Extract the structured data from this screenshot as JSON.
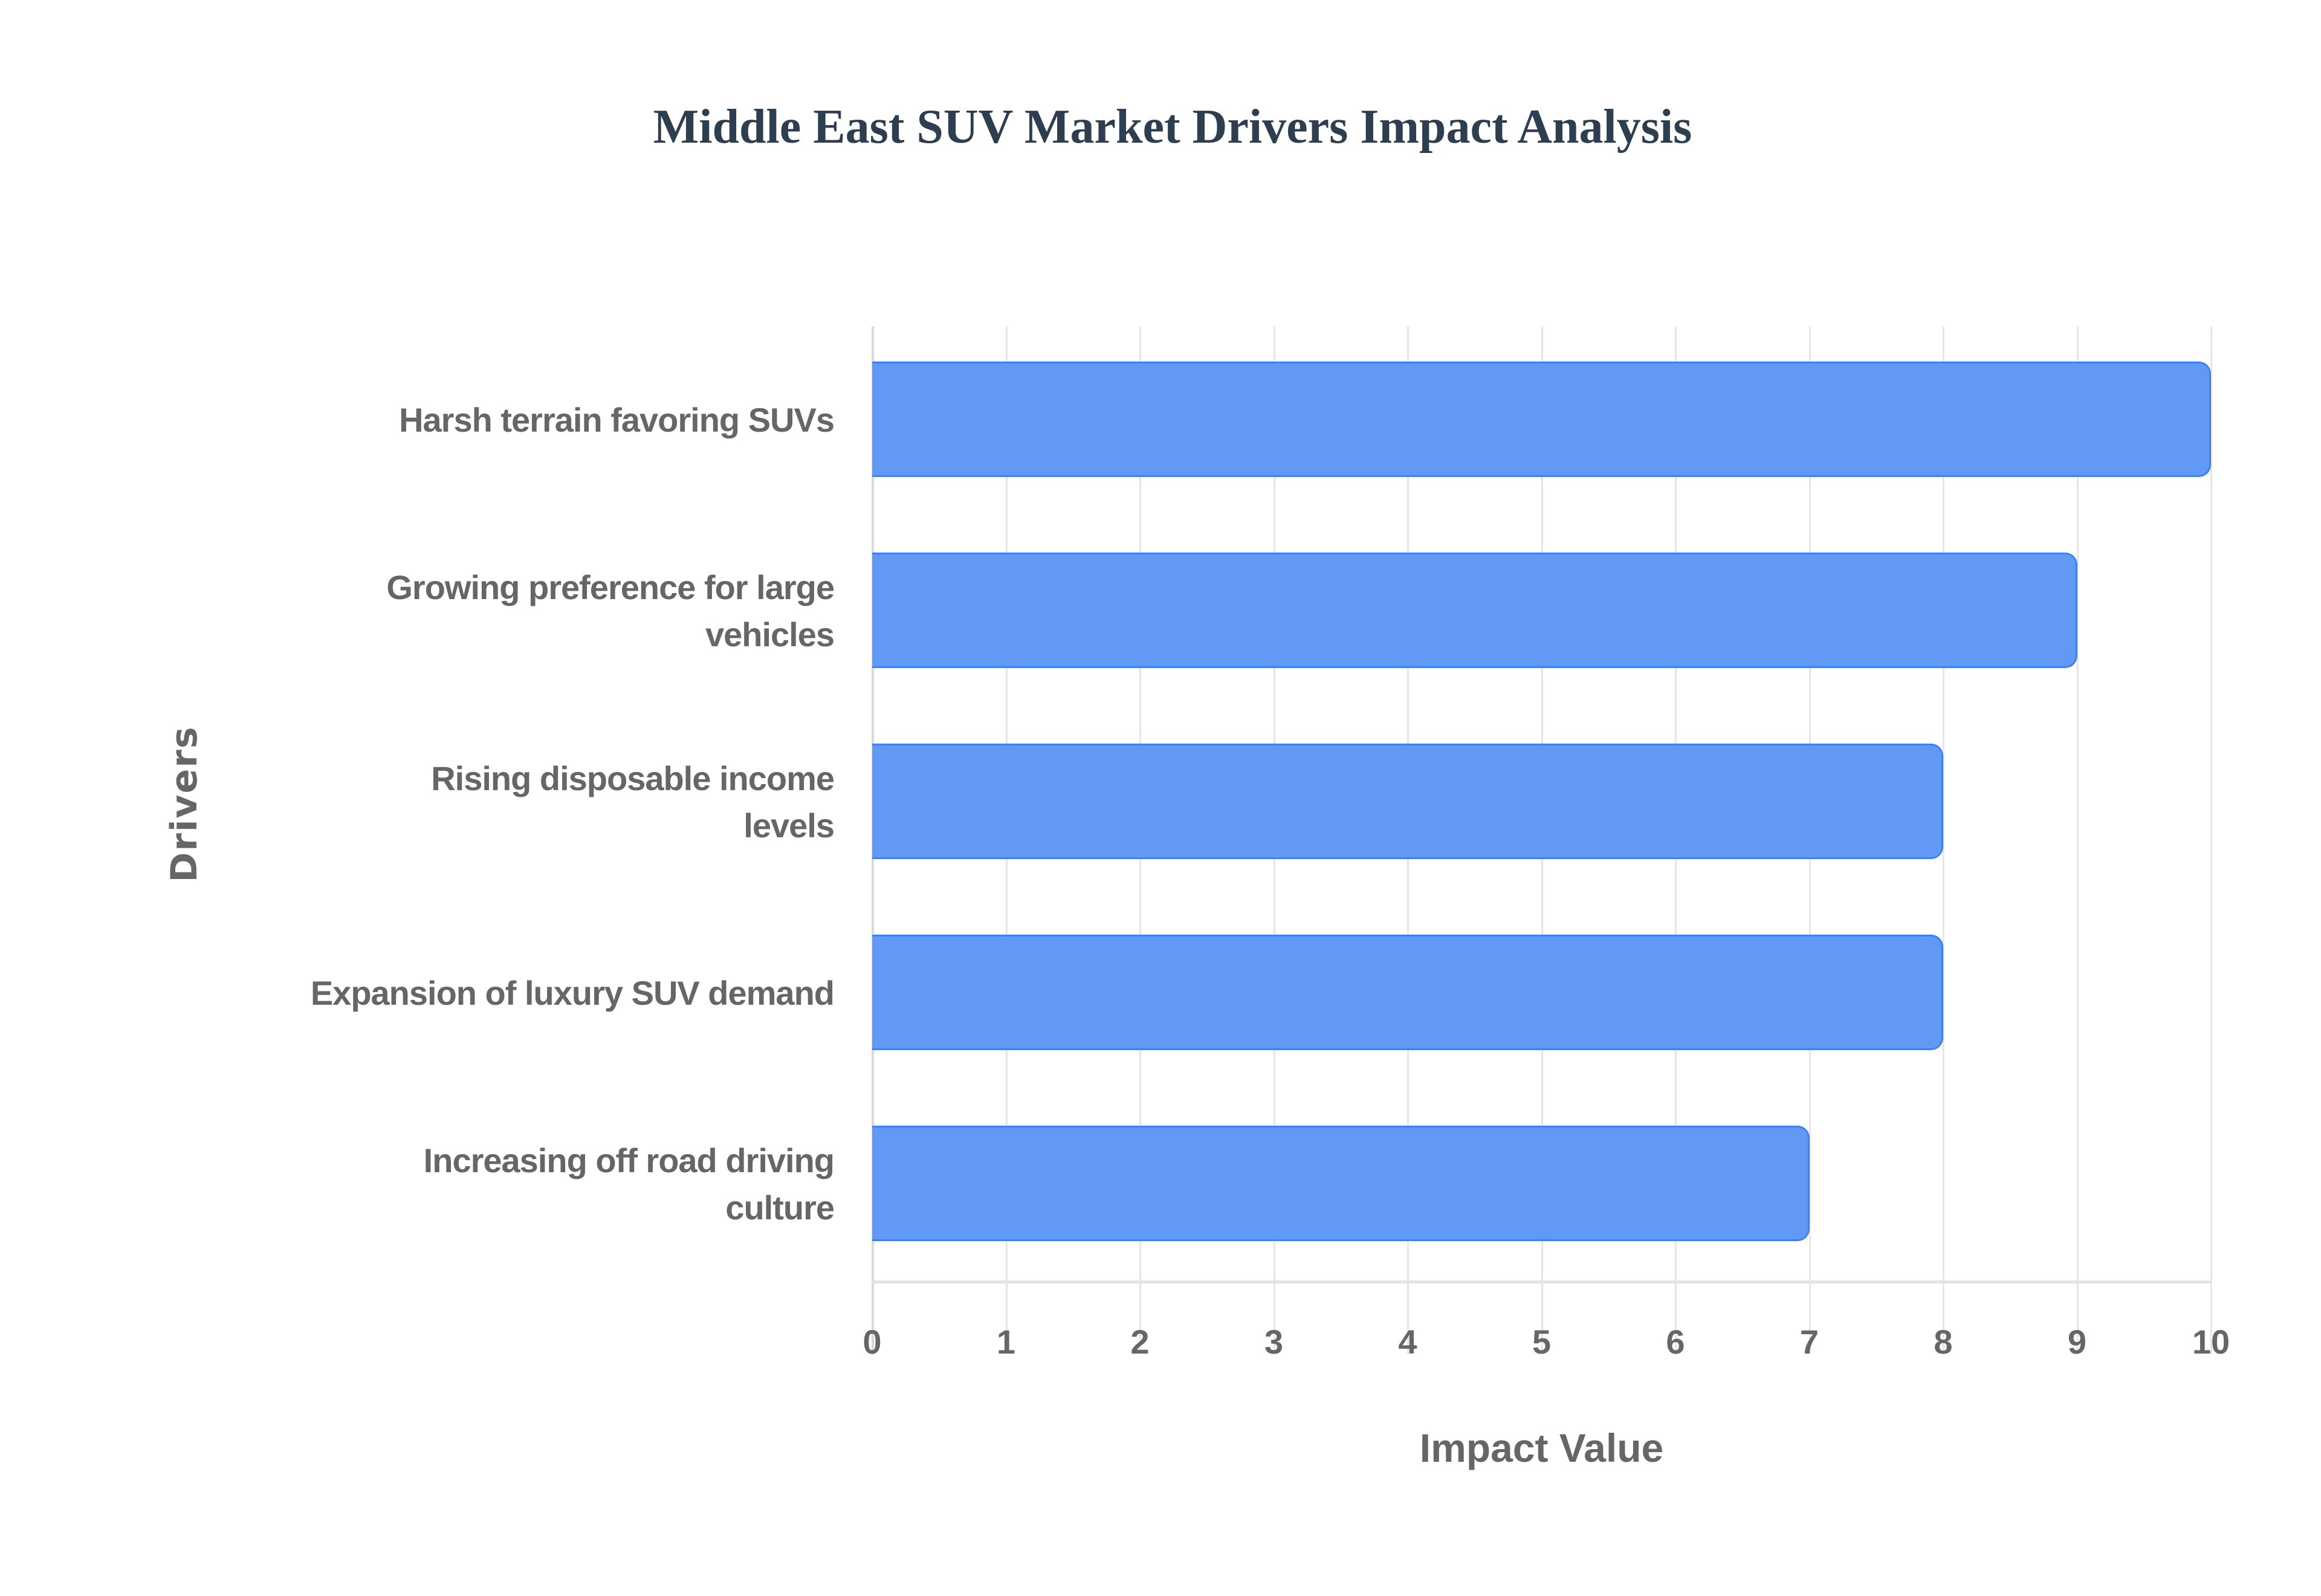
{
  "chart_data": {
    "type": "bar",
    "orientation": "horizontal",
    "title": "Middle East SUV Market Drivers Impact Analysis",
    "xlabel": "Impact Value",
    "ylabel": "Drivers",
    "categories": [
      "Harsh terrain favoring SUVs",
      "Growing preference for large vehicles",
      "Rising disposable income levels",
      "Expansion of luxury SUV demand",
      "Increasing off road driving culture"
    ],
    "category_display_lines": [
      [
        "Harsh terrain favoring SUVs"
      ],
      [
        "Growing preference for large",
        "vehicles"
      ],
      [
        "Rising disposable income",
        "levels"
      ],
      [
        "Expansion of luxury SUV demand"
      ],
      [
        "Increasing off road driving",
        "culture"
      ]
    ],
    "values": [
      10,
      9,
      8,
      8,
      7
    ],
    "xlim": [
      0,
      10
    ],
    "x_ticks": [
      "0",
      "1",
      "2",
      "3",
      "4",
      "5",
      "6",
      "7",
      "8",
      "9",
      "10"
    ],
    "grid": {
      "vertical": true,
      "horizontal": false
    },
    "legend": null,
    "colors": {
      "bar_fill": "#6199f5",
      "bar_border": "#3b82f6",
      "title": "#2c3e50",
      "axis_text": "#666666",
      "grid": "#e6e6e6"
    }
  },
  "chart": {
    "title": "Middle East SUV Market Drivers Impact Analysis",
    "x_axis_title": "Impact Value",
    "y_axis_title": "Drivers",
    "labels": {
      "0": {
        "line1": "Harsh terrain favoring SUVs",
        "line2": ""
      },
      "1": {
        "line1": "Growing preference for large",
        "line2": "vehicles"
      },
      "2": {
        "line1": "Rising disposable income",
        "line2": "levels"
      },
      "3": {
        "line1": "Expansion of luxury SUV demand",
        "line2": ""
      },
      "4": {
        "line1": "Increasing off road driving",
        "line2": "culture"
      }
    },
    "ticks": [
      "0",
      "1",
      "2",
      "3",
      "4",
      "5",
      "6",
      "7",
      "8",
      "9",
      "10"
    ]
  }
}
